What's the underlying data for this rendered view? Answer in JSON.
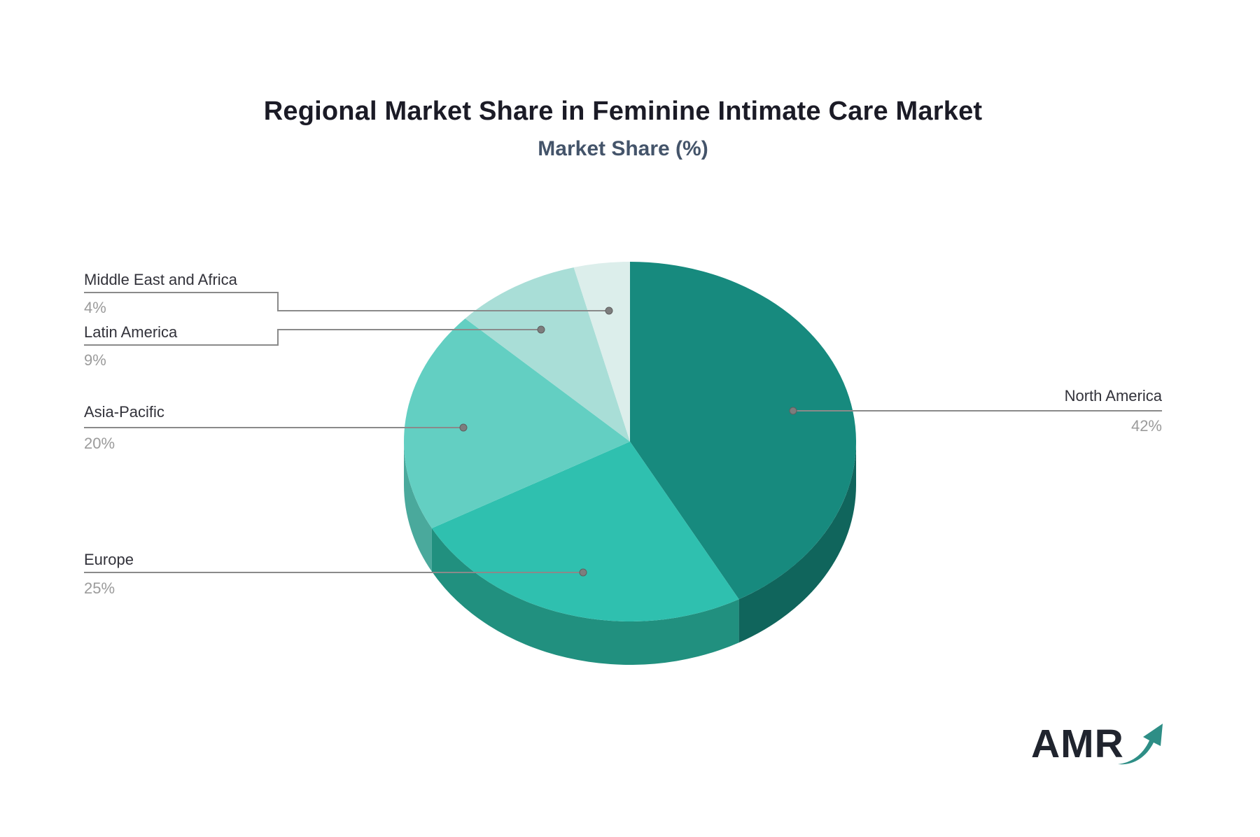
{
  "header": {
    "title": "Regional Market Share in Feminine Intimate Care Market",
    "subtitle": "Market Share (%)"
  },
  "chart_data": {
    "type": "pie",
    "style": "3d-pie",
    "title": "Regional Market Share in Feminine Intimate Care Market",
    "subtitle": "Market Share (%)",
    "unit": "%",
    "start_angle_deg_from_top": 0,
    "direction": "clockwise",
    "legend_position": "callout-labels",
    "slices": [
      {
        "name": "North America",
        "value": 42,
        "pct_label": "42%",
        "color": "#178a7e",
        "side_color": "#10655c",
        "label_side": "right"
      },
      {
        "name": "Europe",
        "value": 25,
        "pct_label": "25%",
        "color": "#2fc0af",
        "side_color": "#21907f",
        "label_side": "left"
      },
      {
        "name": "Asia-Pacific",
        "value": 20,
        "pct_label": "20%",
        "color": "#63cfc2",
        "side_color": "#4aa99c",
        "label_side": "left"
      },
      {
        "name": "Latin America",
        "value": 9,
        "pct_label": "9%",
        "color": "#a9ded7",
        "side_color": "#7fb8b0",
        "label_side": "left"
      },
      {
        "name": "Middle East and Africa",
        "value": 4,
        "pct_label": "4%",
        "color": "#dceeeb",
        "side_color": "#b2cfca",
        "label_side": "left"
      }
    ],
    "callout_line_color": "#8a8a8a",
    "callout_dot_color": "#7d7d7d",
    "label_text_color": "#32323a",
    "pct_text_color": "#9b9b9b"
  },
  "branding": {
    "logo_text": "AMR",
    "logo_arrow_color": "#2e8e86"
  }
}
